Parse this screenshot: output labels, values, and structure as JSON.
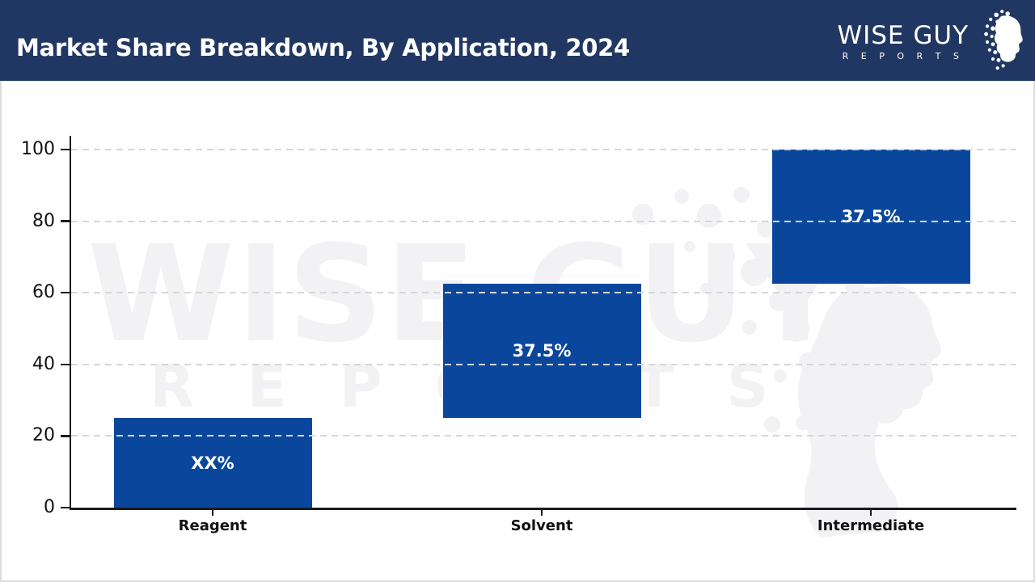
{
  "header": {
    "title": "Market Share Breakdown, By Application, 2024",
    "logo": {
      "name": "WISE GUY",
      "subtitle": "R E P O R T S"
    }
  },
  "watermark": {
    "line1": "WISE GUY",
    "line2": "R E P O R T S"
  },
  "chart_data": {
    "type": "bar",
    "subtype": "waterfall-stacked-breakdown",
    "title": "Market Share Breakdown, By Application, 2024",
    "categories": [
      "Reagent",
      "Solvent",
      "Intermediate"
    ],
    "series": [
      {
        "name": "Market share (%)",
        "segments": [
          {
            "category": "Reagent",
            "base": 0,
            "value": 25,
            "label": "XX%"
          },
          {
            "category": "Solvent",
            "base": 25,
            "value": 37.5,
            "label": "37.5%"
          },
          {
            "category": "Intermediate",
            "base": 62.5,
            "value": 37.5,
            "label": "37.5%"
          }
        ]
      }
    ],
    "xlabel": "",
    "ylabel": "",
    "ylim": [
      0,
      100
    ],
    "yticks": [
      0,
      20,
      40,
      60,
      80,
      100
    ],
    "grid": "horizontal-dashed",
    "legend": "none"
  },
  "colors": {
    "header_bg": "#213763",
    "bar": "#0a479c",
    "bar_label": "#ffffff",
    "grid": "#d5d7da",
    "axis": "#1a1a1a",
    "tick_text": "#111111",
    "watermark": "#f2f2f4",
    "title_text": "#ffffff"
  }
}
